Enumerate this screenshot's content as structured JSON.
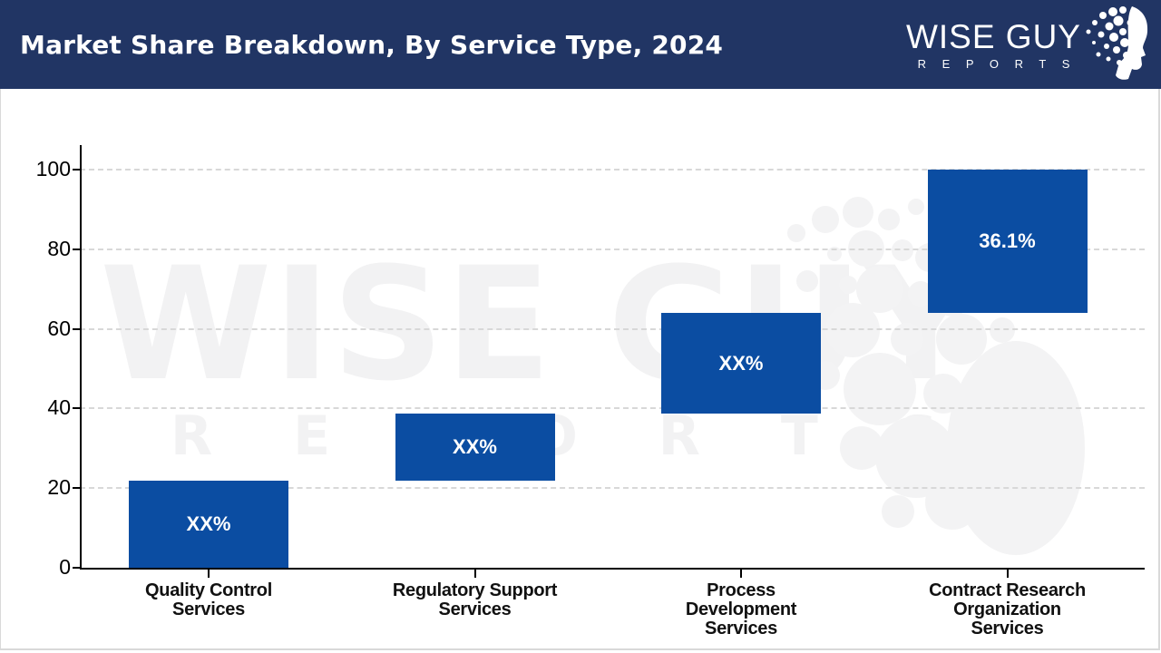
{
  "header": {
    "title": "Market Share Breakdown, By Service Type, 2024"
  },
  "logo": {
    "line1": "WISE GUY",
    "line2": "R E P O R T S",
    "icon": "dotted-face-profile"
  },
  "watermark": {
    "line1": "WISE GUY",
    "line2": "R E P O R T S",
    "icon": "dotted-head-watermark"
  },
  "colors": {
    "header_bg": "#213564",
    "bar": "#0b4da2",
    "bar_label": "#ffffff",
    "grid": "#d8d8d8",
    "axis": "#000000",
    "watermark": "#f2f2f3"
  },
  "chart_data": {
    "type": "bar",
    "subtype": "waterfall",
    "title": "Market Share Breakdown, By Service Type, 2024",
    "xlabel": "",
    "ylabel": "",
    "ylim": [
      0,
      106
    ],
    "yticks": [
      0,
      20,
      40,
      60,
      80,
      100
    ],
    "grid": {
      "axis": "y",
      "style": "dashed",
      "color": "#d8d8d8"
    },
    "legend": "none",
    "bar_color": "#0b4da2",
    "categories": [
      "Quality Control Services",
      "Regulatory Support Services",
      "Process Development Services",
      "Contract Research Organization Services"
    ],
    "category_lines": [
      [
        "Quality Control",
        "Services"
      ],
      [
        "Regulatory Support",
        "Services"
      ],
      [
        "Process",
        "Development",
        "Services"
      ],
      [
        "Contract Research",
        "Organization",
        "Services"
      ]
    ],
    "segments": [
      {
        "category": "Quality Control Services",
        "start": 0,
        "end": 21.8,
        "value": 21.8,
        "label": "XX%"
      },
      {
        "category": "Regulatory Support Services",
        "start": 21.8,
        "end": 38.7,
        "value": 16.9,
        "label": "XX%"
      },
      {
        "category": "Process Development Services",
        "start": 38.7,
        "end": 63.9,
        "value": 25.2,
        "label": "XX%"
      },
      {
        "category": "Contract Research Organization Services",
        "start": 63.9,
        "end": 100,
        "value": 36.1,
        "label": "36.1%"
      }
    ]
  }
}
